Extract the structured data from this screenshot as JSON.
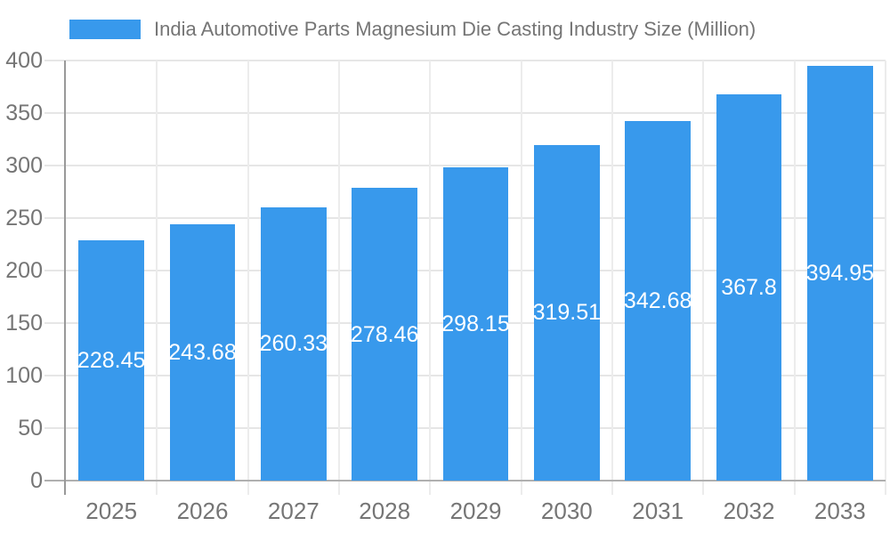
{
  "chart_data": {
    "type": "bar",
    "title": "India Automotive Parts Magnesium Die Casting Industry Size (Million)",
    "legend_position": "top",
    "categories": [
      "2025",
      "2026",
      "2027",
      "2028",
      "2029",
      "2030",
      "2031",
      "2032",
      "2033"
    ],
    "values": [
      228.45,
      243.68,
      260.33,
      278.46,
      298.15,
      319.51,
      342.68,
      367.8,
      394.95
    ],
    "value_labels": [
      "228.45",
      "243.68",
      "260.33",
      "278.46",
      "298.15",
      "319.51",
      "342.68",
      "367.8",
      "394.95"
    ],
    "xlabel": "",
    "ylabel": "",
    "ylim": [
      0,
      400
    ],
    "ytick_step": 50,
    "ytick_labels": [
      "0",
      "50",
      "100",
      "150",
      "200",
      "250",
      "300",
      "350",
      "400"
    ],
    "grid": true,
    "colors": {
      "bar": "#3899EC",
      "bar_label": "#FFFFFF",
      "axis_text": "#757575",
      "grid_line_horizontal": "#E6E6E6",
      "grid_line_vertical": "#ECECEC",
      "y_axis_line": "#999999",
      "x_axis_line": "#B0B0B0",
      "background": "#FFFFFF"
    }
  }
}
